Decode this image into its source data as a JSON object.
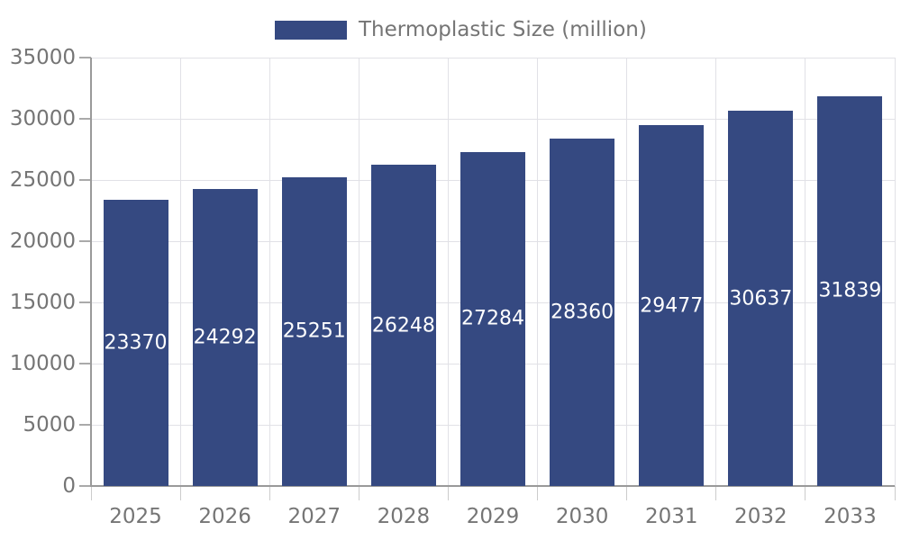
{
  "legend": {
    "label": "Thermoplastic Size (million)"
  },
  "colors": {
    "bar": "#354981",
    "axis": "#9a9a9a",
    "grid": "#e1e1e6",
    "y_tick": "#aaaaaa",
    "x_tick": "#cccccc",
    "axis_text": "#757575",
    "value_label_text": "#ffffff",
    "background": "#ffffff"
  },
  "chart_data": {
    "type": "bar",
    "title": "",
    "xlabel": "",
    "ylabel": "",
    "categories": [
      "2025",
      "2026",
      "2027",
      "2028",
      "2029",
      "2030",
      "2031",
      "2032",
      "2033"
    ],
    "series": [
      {
        "name": "Thermoplastic Size (million)",
        "values": [
          23370,
          24292,
          25251,
          26248,
          27284,
          28360,
          29477,
          30637,
          31839
        ]
      }
    ],
    "value_labels_shown": true,
    "value_label_position": "inside-center",
    "ylim": [
      0,
      35000
    ],
    "ytick_step": 5000,
    "yticks": [
      0,
      5000,
      10000,
      15000,
      20000,
      25000,
      30000,
      35000
    ],
    "grid": true,
    "legend_position": "top-center"
  }
}
